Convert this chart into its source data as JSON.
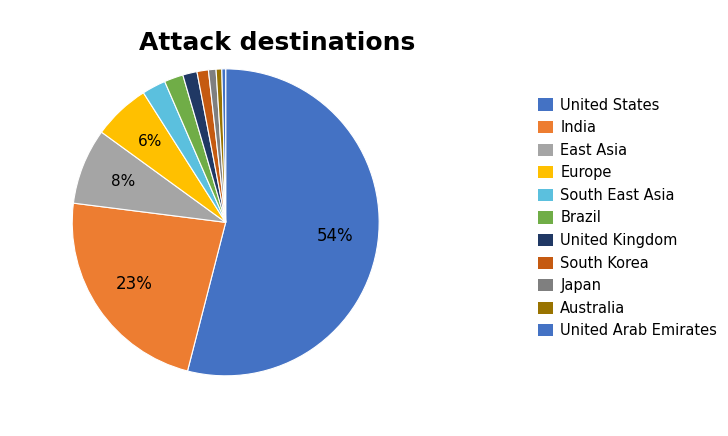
{
  "title": "Attack destinations",
  "labels": [
    "United States",
    "India",
    "East Asia",
    "Europe",
    "South East Asia",
    "Brazil",
    "United Kingdom",
    "South Korea",
    "Japan",
    "Australia",
    "United Arab Emirates"
  ],
  "values": [
    54,
    23,
    8,
    6,
    2.5,
    2.0,
    1.5,
    1.2,
    0.8,
    0.6,
    0.4
  ],
  "colors": [
    "#4472c4",
    "#ed7d31",
    "#a5a5a5",
    "#ffc000",
    "#5bc0de",
    "#70ad47",
    "#203864",
    "#c55a11",
    "#7f7f7f",
    "#997300",
    "#4472c4"
  ],
  "show_pct_indices": [
    0,
    1,
    2,
    3
  ],
  "background_color": "#ffffff",
  "title_fontsize": 18,
  "legend_fontsize": 10.5
}
